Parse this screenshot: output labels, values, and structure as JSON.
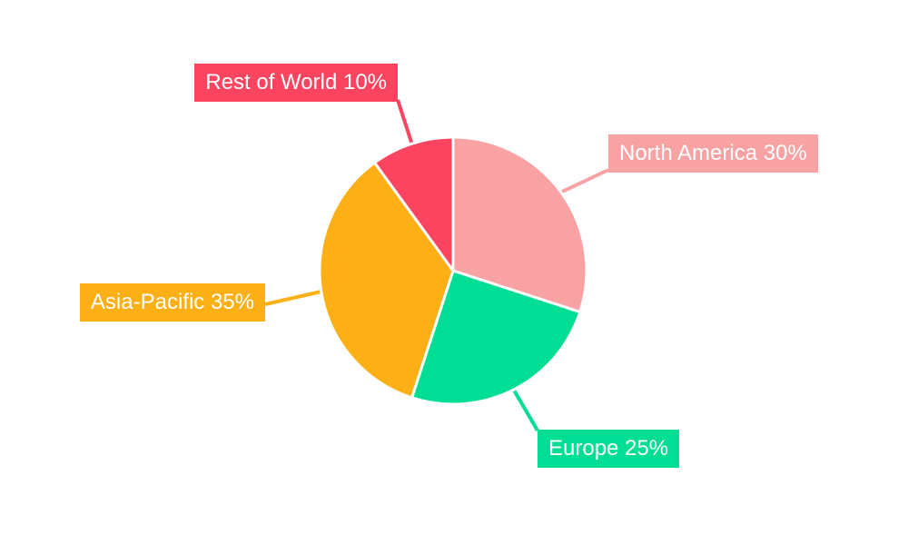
{
  "chart_data": {
    "type": "pie",
    "title": "",
    "slices": [
      {
        "label": "North America",
        "value": 30,
        "color": "#F8A2A4",
        "callout_text": "North America 30%"
      },
      {
        "label": "Europe",
        "value": 25,
        "color": "#00DE95",
        "callout_text": "Europe 25%"
      },
      {
        "label": "Asia-Pacific",
        "value": 35,
        "color": "#FCB016",
        "callout_text": "Asia-Pacific 35%"
      },
      {
        "label": "Rest of World",
        "value": 10,
        "color": "#FB4560",
        "callout_text": "Rest of World 10%"
      }
    ],
    "start_angle_deg": 0,
    "direction": "clockwise",
    "legend_position": "callout-labels",
    "background": "#FFFFFF",
    "callout_text_color": "#FFFFFF",
    "slice_gap_color": "#FFFFFF"
  }
}
